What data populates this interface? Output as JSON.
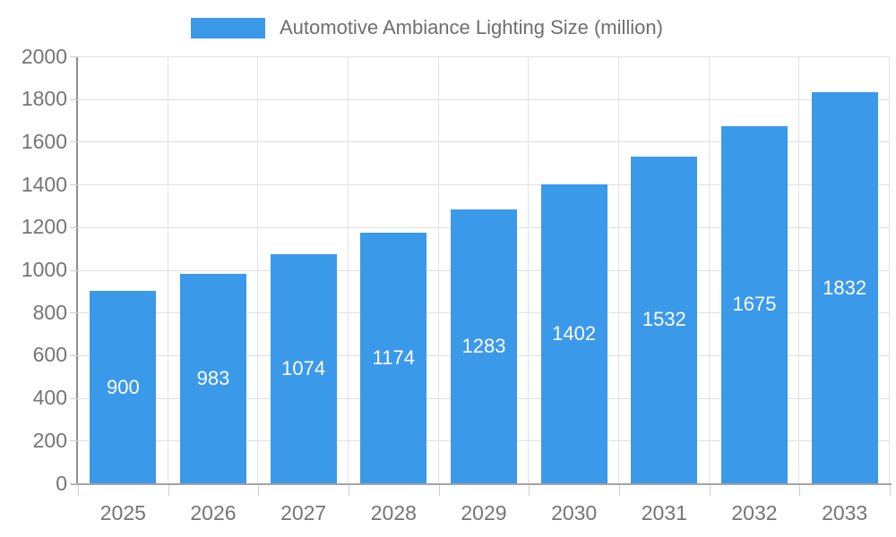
{
  "chart_data": {
    "type": "bar",
    "title": "",
    "legend_label": "Automotive Ambiance Lighting Size (million)",
    "legend_position": "top",
    "categories": [
      "2025",
      "2026",
      "2027",
      "2028",
      "2029",
      "2030",
      "2031",
      "2032",
      "2033"
    ],
    "values": [
      900,
      983,
      1074,
      1174,
      1283,
      1402,
      1532,
      1675,
      1832
    ],
    "series": [
      {
        "name": "Automotive Ambiance Lighting Size (million)",
        "values": [
          900,
          983,
          1074,
          1174,
          1283,
          1402,
          1532,
          1675,
          1832
        ]
      }
    ],
    "xlabel": "",
    "ylabel": "",
    "ylim": [
      0,
      2000
    ],
    "ytick_step": 200,
    "yticks": [
      0,
      200,
      400,
      600,
      800,
      1000,
      1200,
      1400,
      1600,
      1800,
      2000
    ],
    "grid": "both",
    "data_labels": "inside-center",
    "colors": {
      "bar": "#3b99ea",
      "bar_label": "#ffffff",
      "axis_text": "#757575",
      "legend_text": "#6e6e6e",
      "gridline": "#e0e0e0",
      "axis_line": "#9a9a9a",
      "tick": "#cfcfcf",
      "background": "#ffffff"
    }
  }
}
